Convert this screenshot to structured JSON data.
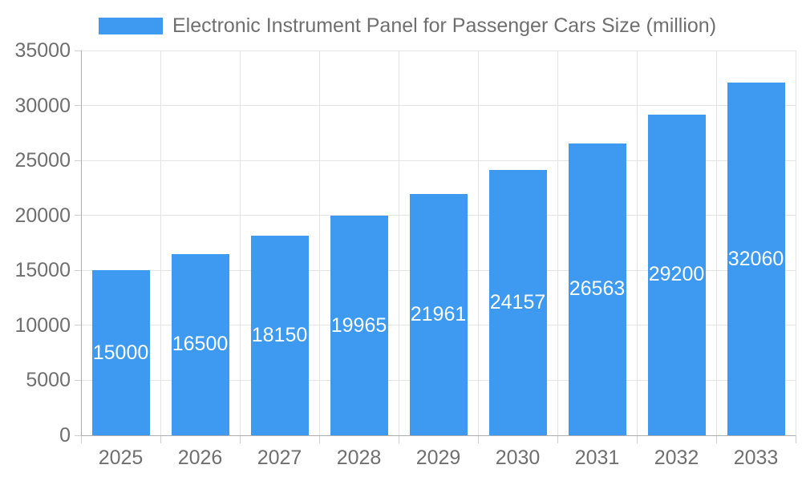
{
  "legend": {
    "label": "Electronic Instrument Panel for Passenger Cars Size (million)"
  },
  "chart_data": {
    "type": "bar",
    "title": "Electronic Instrument Panel for Passenger Cars Size (million)",
    "series_name": "Electronic Instrument Panel for Passenger Cars Size (million)",
    "categories": [
      "2025",
      "2026",
      "2027",
      "2028",
      "2029",
      "2030",
      "2031",
      "2032",
      "2033"
    ],
    "values": [
      15000,
      16500,
      18150,
      19965,
      21961,
      24157,
      26563,
      29200,
      32060
    ],
    "data_labels": [
      "15000",
      "16500",
      "18150",
      "19965",
      "21961",
      "24157",
      "26563",
      "29200",
      "32060"
    ],
    "xlabel": "",
    "ylabel": "",
    "ylim": [
      0,
      35000
    ],
    "yticks": [
      0,
      5000,
      10000,
      15000,
      20000,
      25000,
      30000,
      35000
    ],
    "grid": true,
    "legend_position": "top",
    "colors": {
      "bar": "#3d9af0",
      "bar_label_text": "#ffffff",
      "axis_text": "#6f6f6f",
      "grid_line": "#e4e4e4",
      "axis_line": "#adadad",
      "tick_line": "#cfcfcf",
      "background": "#ffffff"
    }
  }
}
